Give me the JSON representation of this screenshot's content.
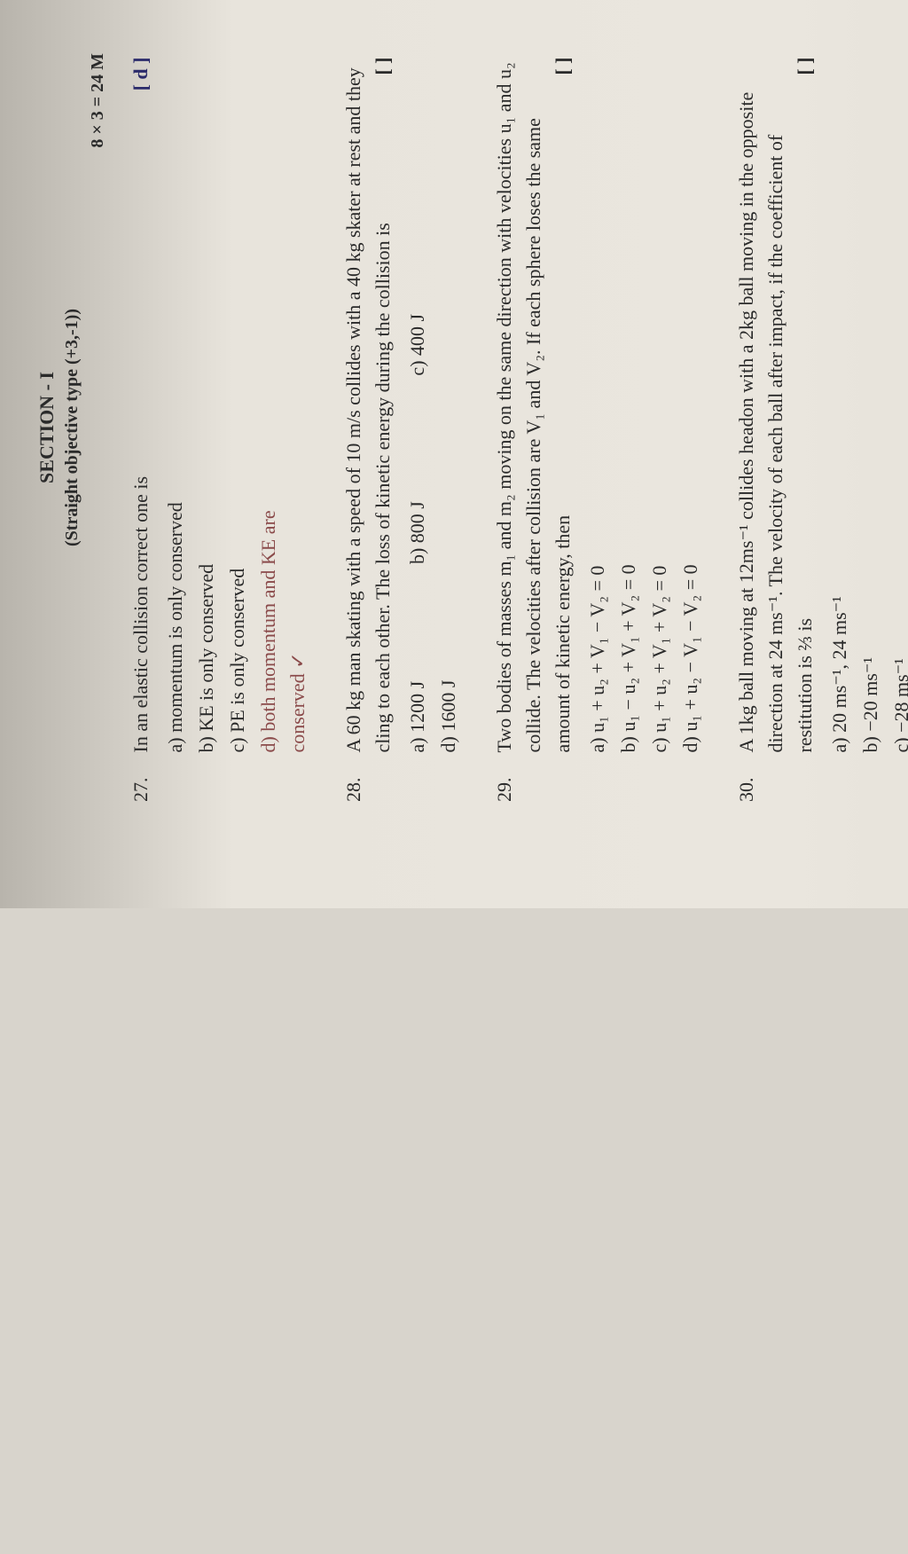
{
  "section": {
    "title": "SECTION - I",
    "subtitle": "(Straight objective type (+3,-1))",
    "marks": "8 × 3 = 24 M"
  },
  "questions": [
    {
      "num": "27.",
      "text": "In an elastic collision correct one is",
      "bracket": "[ d ]",
      "opts": [
        {
          "label": "a) momentum is only conserved",
          "w": "opt-half"
        },
        {
          "label": "b) KE is only conserved",
          "w": "opt-half"
        },
        {
          "label": "c) PE is only conserved",
          "w": "opt-half"
        },
        {
          "label": "d) both momentum and KE are conserved ✓",
          "w": "opt-half"
        }
      ]
    },
    {
      "num": "28.",
      "text": "A 60 kg man skating with a speed of 10 m/s collides with a 40 kg skater at rest and they cling to each other. The loss of kinetic energy during the collision is",
      "bracket": "[    ]",
      "opts": [
        {
          "label": "a) 1200 J",
          "w": "opt-quarter"
        },
        {
          "label": "b) 800 J",
          "w": "opt-quarter"
        },
        {
          "label": "c) 400 J",
          "w": "opt-quarter"
        },
        {
          "label": "d) 1600 J",
          "w": "opt-quarter"
        }
      ]
    },
    {
      "num": "29.",
      "text": "Two bodies of masses m₁ and m₂ moving on the same direction with velocities u₁ and u₂ collide. The velocities after collision are V₁ and V₂. If each sphere loses the same amount of kinetic energy, then",
      "bracket": "[    ]",
      "opts": [
        {
          "label": "a) u₁ + u₂ + V₁ − V₂ = 0",
          "w": "opt-half"
        },
        {
          "label": "b) u₁ − u₂ + V₁ + V₂ = 0",
          "w": "opt-half"
        },
        {
          "label": "c) u₁ + u₂ + V₁ + V₂ = 0",
          "w": "opt-half"
        },
        {
          "label": "d) u₁ + u₂ − V₁ − V₂ = 0",
          "w": "opt-half"
        }
      ]
    },
    {
      "num": "30.",
      "text": "A 1kg ball moving at 12ms⁻¹ collides headon with a 2kg ball moving in the opposite direction at 24 ms⁻¹. The velocity of each ball after impact, if the coefficient of restitution is ⅔ is",
      "bracket": "[    ]",
      "opts": [
        {
          "label": "a) 20 ms⁻¹, 24 ms⁻¹",
          "w": "opt-half"
        },
        {
          "label": "b) −20 ms⁻¹",
          "w": "opt-half"
        },
        {
          "label": "c) −28 ms⁻¹",
          "w": "opt-half"
        }
      ]
    }
  ]
}
